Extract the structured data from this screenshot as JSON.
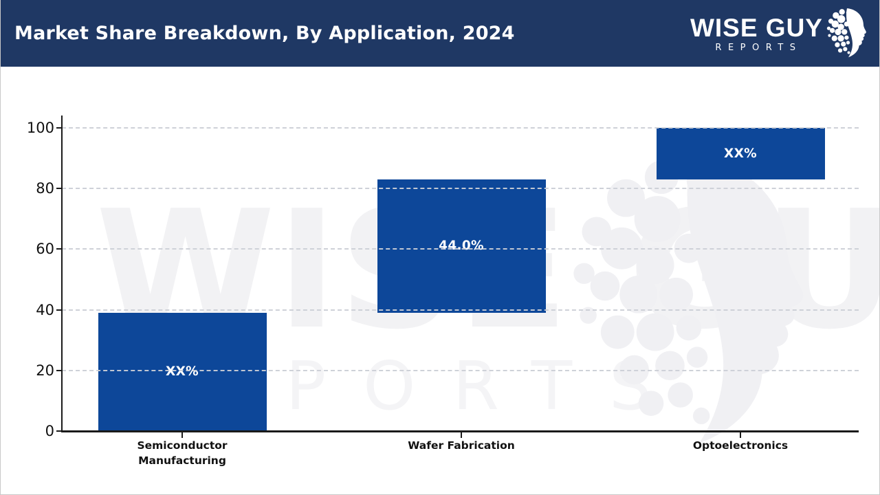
{
  "header": {
    "title": "Market Share Breakdown, By Application, 2024",
    "logo": {
      "wordmark": "WISE GUY",
      "subtext": "REPORTS"
    }
  },
  "watermark": {
    "wordmark": "WISE GUY",
    "subtext": "REPORTS"
  },
  "chart_data": {
    "type": "bar",
    "subtype": "floating-waterfall-bars",
    "title": "Market Share Breakdown, By Application, 2024",
    "categories": [
      "Semiconductor\nManufacturing",
      "Wafer Fabrication",
      "Optoelectronics"
    ],
    "bars": [
      {
        "category": "Semiconductor Manufacturing",
        "label": "XX%",
        "start": 0,
        "end": 39
      },
      {
        "category": "Wafer Fabrication",
        "label": "44.0%",
        "start": 39,
        "end": 83
      },
      {
        "category": "Optoelectronics",
        "label": "XX%",
        "start": 83,
        "end": 100
      }
    ],
    "xlabel": "",
    "ylabel": "",
    "yticks": [
      0,
      20,
      40,
      60,
      80,
      100
    ],
    "ylim": [
      0,
      104
    ],
    "grid": "horizontal-dashed",
    "legend": null
  },
  "colors": {
    "header_bg": "#1f3864",
    "bar": "#0d4799",
    "grid": "#cbcfd6",
    "axis": "#1a1a1a",
    "watermark": "#f2f2f4"
  }
}
